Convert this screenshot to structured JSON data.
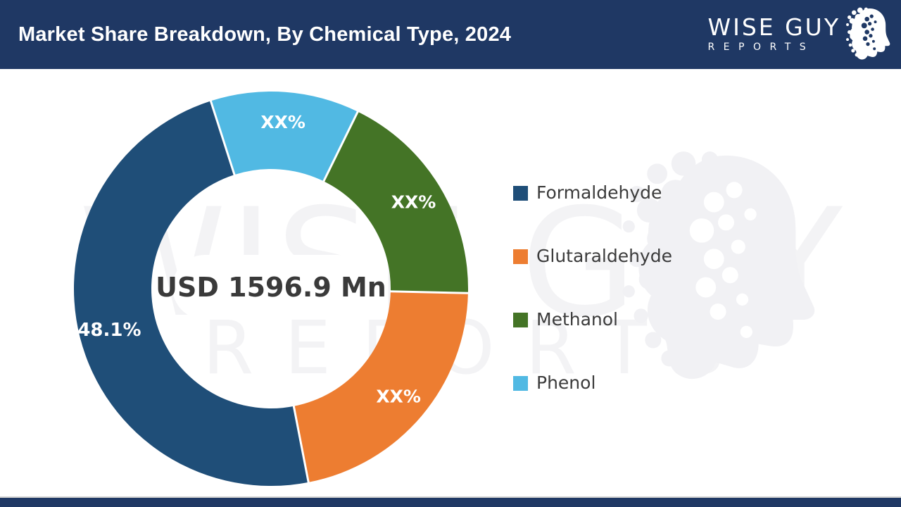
{
  "header": {
    "title": "Market Share Breakdown, By Chemical Type, 2024",
    "bg_color": "#1F3864",
    "logo": {
      "line1": "WISE GUY",
      "line2": "REPORTS"
    }
  },
  "watermark": {
    "line1": "WISE GUY",
    "line2": "REPORTS"
  },
  "footer": {
    "bg_color": "#1F3864"
  },
  "chart_data": {
    "type": "pie",
    "donut": true,
    "title": "Market Share Breakdown, By Chemical Type, 2024",
    "center_text": "USD 1596.9 Mn",
    "start_angle_deg": -17.8,
    "direction": "clockwise-from-top-starting-with-last-segment",
    "legend_position": "right",
    "segments": [
      {
        "label": "Formaldehyde",
        "value_pct": 48.1,
        "display": "48.1%",
        "color": "#1F4E78"
      },
      {
        "label": "Glutaraldehyde",
        "value_pct": 21.6,
        "display": "XX%",
        "color": "#ED7D31"
      },
      {
        "label": "Methanol",
        "value_pct": 18.1,
        "display": "XX%",
        "color": "#447426"
      },
      {
        "label": "Phenol",
        "value_pct": 12.2,
        "display": "XX%",
        "color": "#51B9E3"
      }
    ]
  }
}
